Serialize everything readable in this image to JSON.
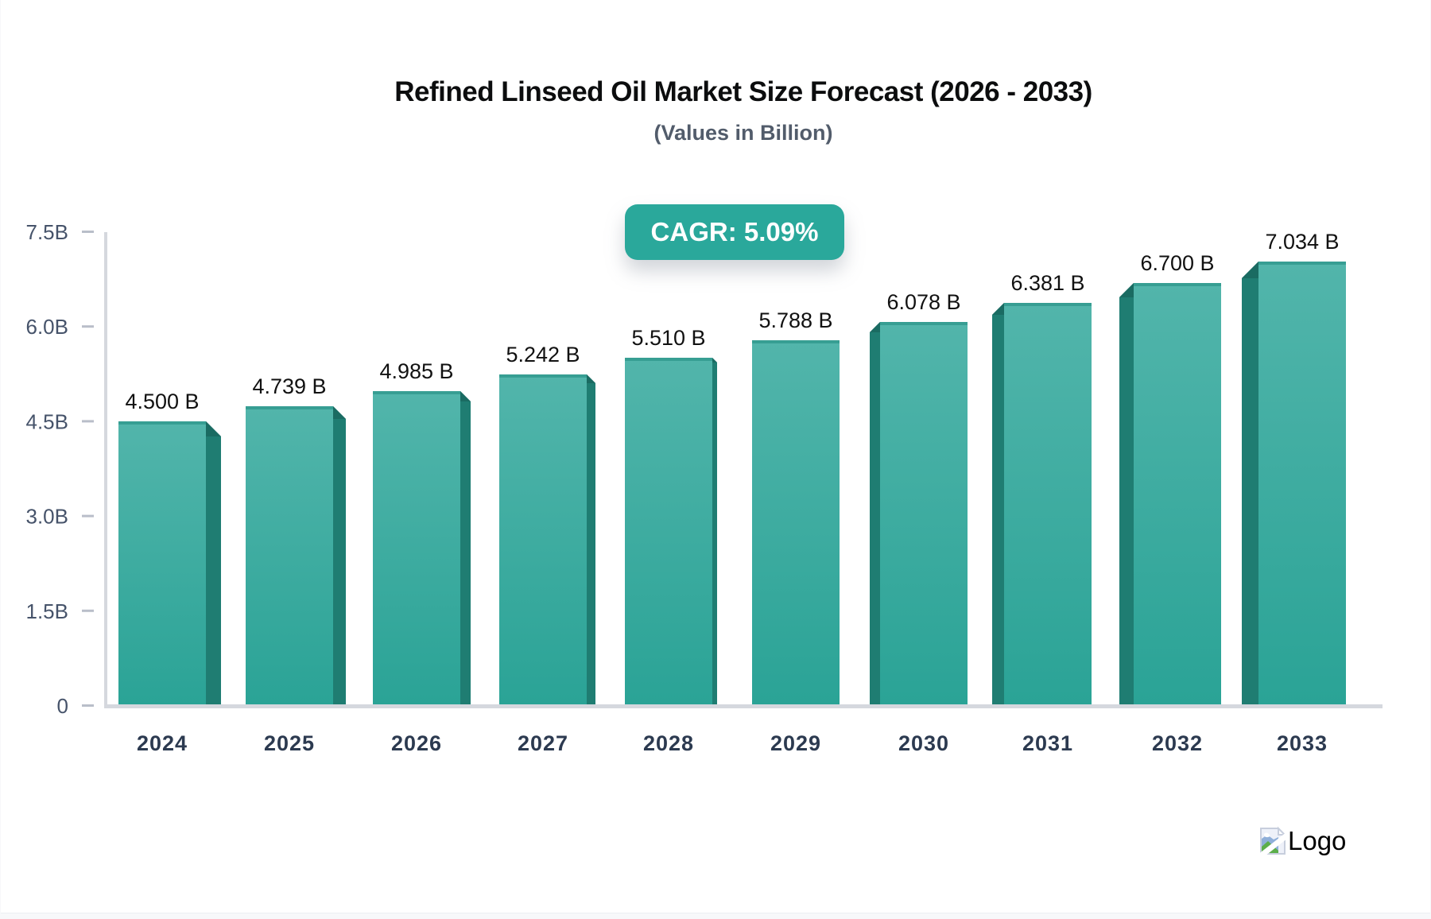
{
  "header": {
    "title": "Refined Linseed Oil Market Size Forecast (2026 - 2033)",
    "subtitle": "(Values in Billion)"
  },
  "badge": {
    "label": "CAGR: 5.09%"
  },
  "logo": {
    "alt_text": "Logo"
  },
  "chart_data": {
    "type": "bar",
    "title": "Refined Linseed Oil Market Size Forecast (2026 - 2033)",
    "subtitle": "(Values in Billion)",
    "xlabel": "",
    "ylabel": "",
    "categories": [
      "2024",
      "2025",
      "2026",
      "2027",
      "2028",
      "2029",
      "2030",
      "2031",
      "2032",
      "2033"
    ],
    "values": [
      4.5,
      4.739,
      4.985,
      5.242,
      5.51,
      5.788,
      6.078,
      6.381,
      6.7,
      7.034
    ],
    "value_labels": [
      "4.500 B",
      "4.739 B",
      "4.985 B",
      "5.242 B",
      "5.510 B",
      "5.788 B",
      "6.078 B",
      "6.381 B",
      "6.700 B",
      "7.034 B"
    ],
    "ylim": [
      0,
      7.5
    ],
    "yticks": [
      {
        "label": "7.5B",
        "value": 7.5
      },
      {
        "label": "6.0B",
        "value": 6.0
      },
      {
        "label": "4.5B",
        "value": 4.5
      },
      {
        "label": "3.0B",
        "value": 3.0
      },
      {
        "label": "1.5B",
        "value": 1.5
      },
      {
        "label": "0",
        "value": 0
      }
    ],
    "grid": false,
    "legend": "none",
    "bar_style": "3d-perspective",
    "colors": {
      "bar_face_top": "#52b5ab",
      "bar_face_bottom": "#2aa396",
      "bar_top_edge": "#379e93",
      "bar_side": "#1f7d72",
      "bar_side_corner": "#1a6b62",
      "badge_bg": "#2aa89b",
      "axis_line": "#d5d8de",
      "tick_text": "#46536a",
      "year_text": "#2c3a50",
      "value_text": "#111111"
    }
  }
}
